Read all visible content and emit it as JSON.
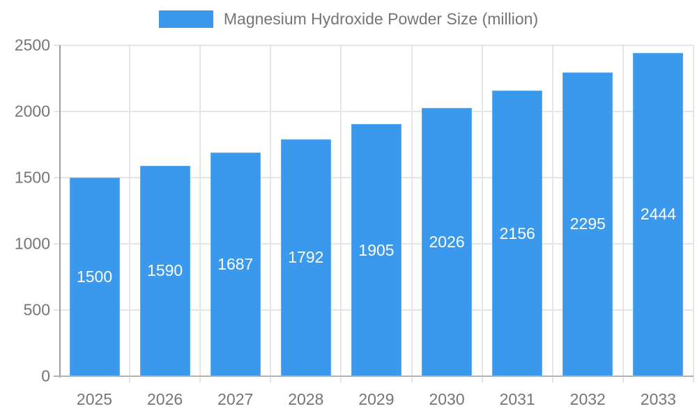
{
  "legend": {
    "series_label": "Magnesium Hydroxide Powder Size (million)"
  },
  "colors": {
    "bar_fill": "#3a99ec",
    "bar_border": "#5fadf0",
    "axis_text": "#757575",
    "grid_line": "#e5e5e5",
    "axis_line": "#9e9e9e",
    "value_label_text": "#ffffff"
  },
  "chart_data": {
    "type": "bar",
    "title": "Magnesium Hydroxide Powder Size (million)",
    "categories": [
      "2025",
      "2026",
      "2027",
      "2028",
      "2029",
      "2030",
      "2031",
      "2032",
      "2033"
    ],
    "values": [
      1500,
      1590,
      1687,
      1792,
      1905,
      2026,
      2156,
      2295,
      2444
    ],
    "value_labels": [
      "1500",
      "1590",
      "1687",
      "1792",
      "1905",
      "2026",
      "2156",
      "2295",
      "2444"
    ],
    "xlabel": "",
    "ylabel": "",
    "ylim": [
      0,
      2500
    ],
    "yticks": [
      0,
      500,
      1000,
      1500,
      2000,
      2500
    ],
    "ytick_labels": [
      "0",
      "500",
      "1000",
      "1500",
      "2000",
      "2500"
    ],
    "grid": true,
    "legend_position": "top-center",
    "value_label_position": "middle-of-bar"
  }
}
